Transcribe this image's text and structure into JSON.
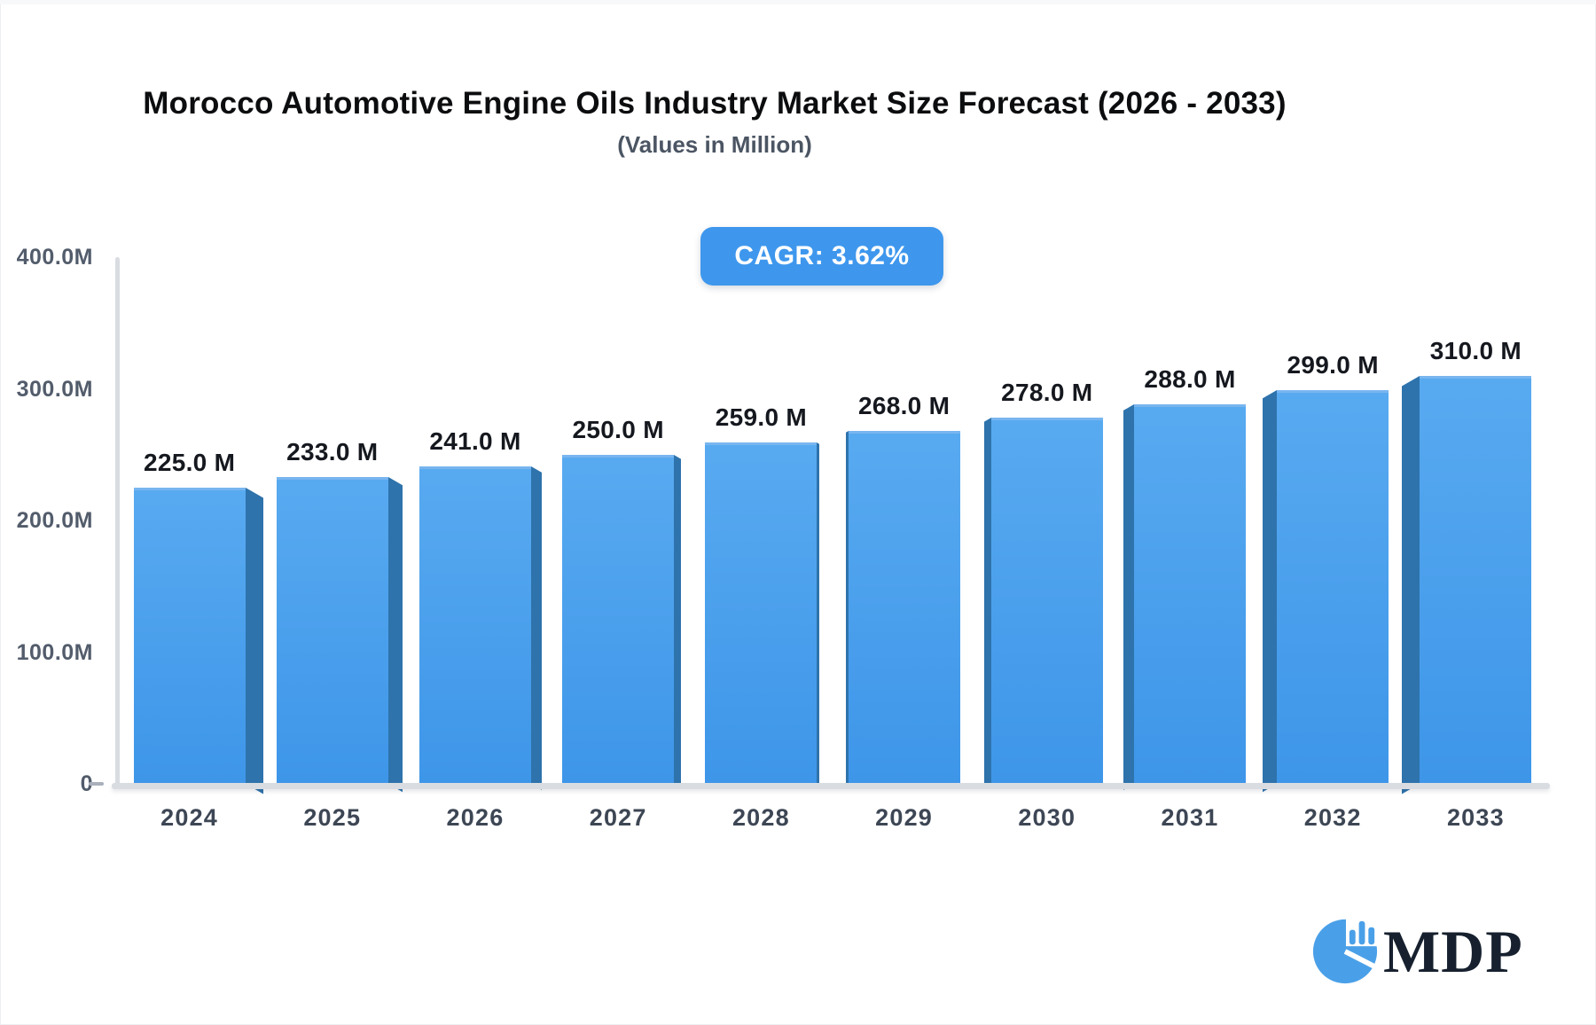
{
  "header": {
    "title": "Morocco Automotive Engine Oils Industry Market Size Forecast (2026 - 2033)",
    "subtitle": "(Values in Million)"
  },
  "badge": {
    "label": "CAGR: 3.62%",
    "background": "#3E97ED",
    "text_color": "#FFFFFF"
  },
  "chart_data": {
    "type": "bar",
    "title": "Morocco Automotive Engine Oils Industry Market Size Forecast (2026 - 2033)",
    "subtitle": "(Values in Million)",
    "unit": "Million",
    "categories": [
      "2024",
      "2025",
      "2026",
      "2027",
      "2028",
      "2029",
      "2030",
      "2031",
      "2032",
      "2033"
    ],
    "values": [
      225,
      233,
      241,
      250,
      259,
      268,
      278,
      288,
      299,
      310
    ],
    "value_labels": [
      "225.0 M",
      "233.0 M",
      "241.0 M",
      "250.0 M",
      "259.0 M",
      "268.0 M",
      "278.0 M",
      "288.0 M",
      "299.0 M",
      "310.0 M"
    ],
    "cagr_percent": 3.62,
    "ylim": [
      0,
      400
    ],
    "yticks": [
      {
        "value": 400,
        "label": "400.0M"
      },
      {
        "value": 300,
        "label": "300.0M"
      },
      {
        "value": 200,
        "label": "200.0M"
      },
      {
        "value": 100,
        "label": "100.0M"
      },
      {
        "value": 0,
        "label": "0"
      }
    ],
    "grid": false,
    "legend": false,
    "style_3d": "perspective toward center; left bars show right side face, right bars show left side face",
    "colors": {
      "bar_top": "#58AAF0",
      "bar_bottom": "#3E96E9",
      "bar_side": "#2E73AC",
      "axis": "#D9DCE1",
      "value_label": "#15181E",
      "y_tick_label": "#525C6B",
      "x_tick_label": "#3D4654"
    }
  },
  "logo": {
    "text": "MDP",
    "text_color": "#16202E",
    "icon": "pie-bar-chart-icon",
    "icon_color": "#4AA0E8"
  }
}
